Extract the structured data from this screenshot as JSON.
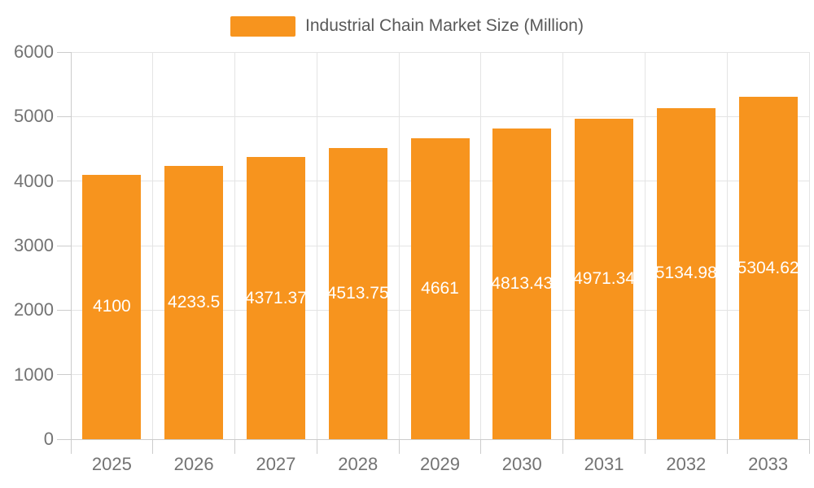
{
  "legend": {
    "label": "Industrial Chain Market Size (Million)"
  },
  "chart_data": {
    "type": "bar",
    "title": "Industrial Chain Market Size (Million)",
    "categories": [
      "2025",
      "2026",
      "2027",
      "2028",
      "2029",
      "2030",
      "2031",
      "2032",
      "2033"
    ],
    "series": [
      {
        "name": "Industrial Chain Market Size (Million)",
        "values": [
          4100,
          4233.5,
          4371.37,
          4513.75,
          4661,
          4813.43,
          4971.34,
          5134.98,
          5304.62
        ]
      }
    ],
    "data_labels": [
      "4100",
      "4233.5",
      "4371.37",
      "4513.75",
      "4661",
      "4813.43",
      "4971.34",
      "5134.98",
      "5304.62"
    ],
    "xlabel": "",
    "ylabel": "",
    "ylim": [
      0,
      6000
    ],
    "yticks": [
      0,
      1000,
      2000,
      3000,
      4000,
      5000,
      6000
    ],
    "grid": "on",
    "legend_position": "top-center",
    "colors": {
      "bar": "#f7941e",
      "bar_label": "#ffffff",
      "legend_text": "#595959",
      "axis_text": "#737373",
      "gridline": "#e4e4e4",
      "axis_line": "#cccccc"
    }
  }
}
